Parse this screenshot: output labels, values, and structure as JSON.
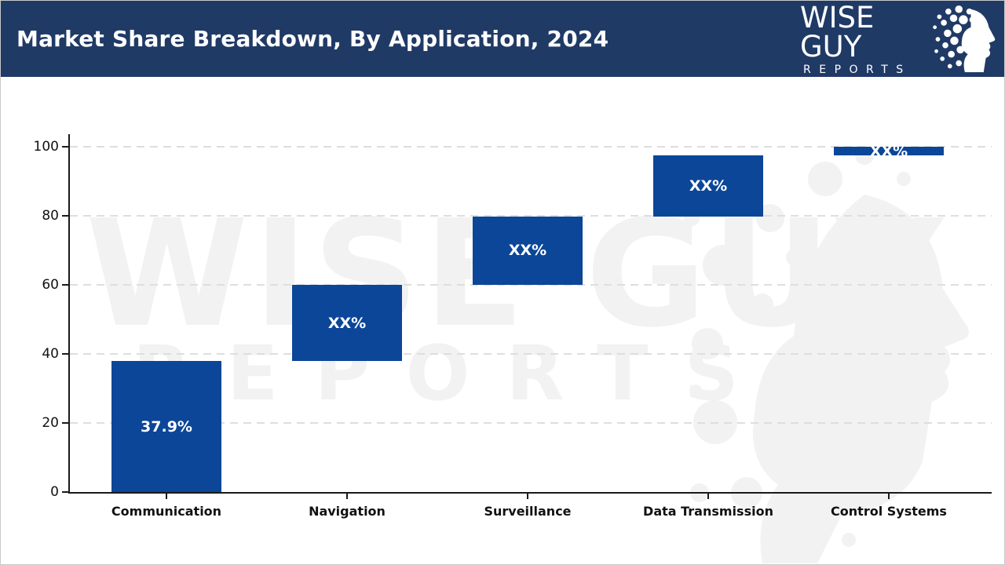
{
  "header": {
    "title": "Market Share Breakdown, By Application, 2024",
    "bg_color": "#203a66",
    "text_color": "#ffffff"
  },
  "logo": {
    "line1": "WISE GUY",
    "line2": "REPORTS"
  },
  "watermark": {
    "line1": "WISE GUY",
    "line2": "REPORTS"
  },
  "chart_data": {
    "type": "bar",
    "variant": "waterfall",
    "title": "Market Share Breakdown, By Application, 2024",
    "categories": [
      "Communication",
      "Navigation",
      "Surveillance",
      "Data Transmission",
      "Control Systems"
    ],
    "segments": [
      {
        "category": "Communication",
        "start": 0,
        "end": 37.9,
        "label": "37.9%"
      },
      {
        "category": "Navigation",
        "start": 37.9,
        "end": 60,
        "label": "XX%"
      },
      {
        "category": "Surveillance",
        "start": 60,
        "end": 79.8,
        "label": "XX%"
      },
      {
        "category": "Data Transmission",
        "start": 79.8,
        "end": 97.5,
        "label": "XX%"
      },
      {
        "category": "Control Systems",
        "start": 97.5,
        "end": 100,
        "label": "XX%"
      }
    ],
    "bar_color": "#0b4699",
    "bar_label_color": "#ffffff",
    "yticks": [
      0,
      20,
      40,
      60,
      80,
      100
    ],
    "ylim": [
      0,
      104
    ],
    "xlabel": "",
    "ylabel": "",
    "grid": "horizontal-dashed",
    "legend": "none"
  }
}
